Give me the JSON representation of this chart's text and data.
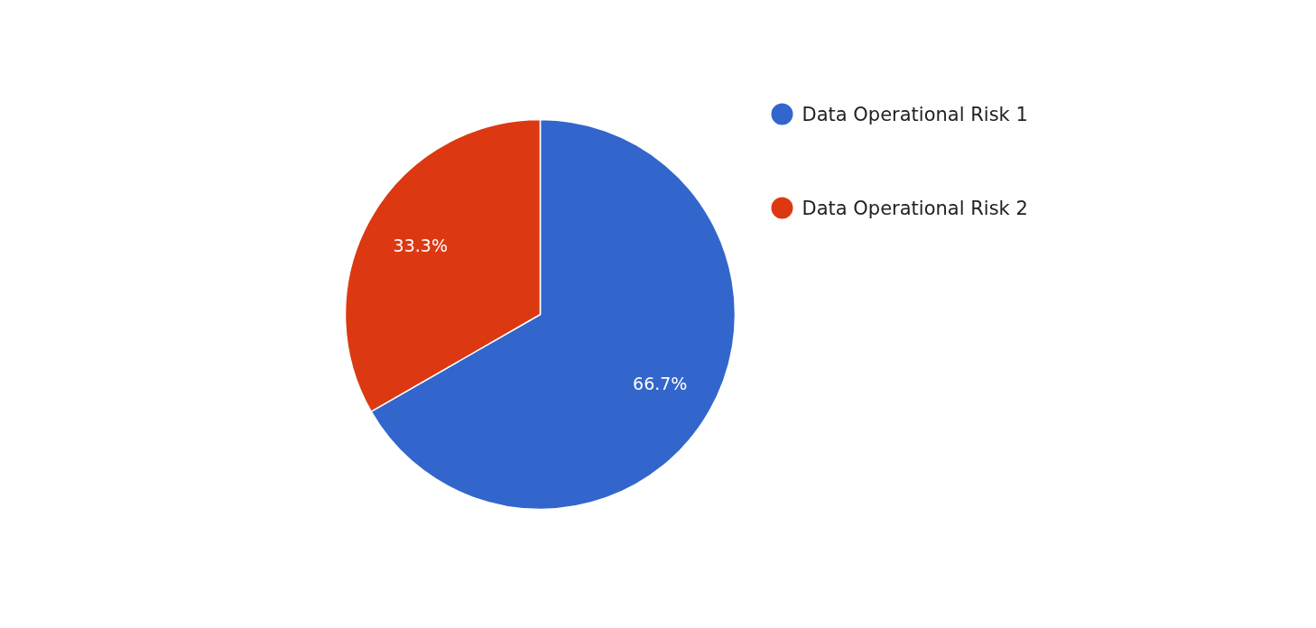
{
  "chart_data": {
    "type": "pie",
    "categories": [
      "Data Operational Risk 1",
      "Data Operational Risk 2"
    ],
    "values": [
      66.7,
      33.3
    ],
    "colors": [
      "#3366cc",
      "#dc3912"
    ],
    "value_labels": [
      "66.7%",
      "33.3%"
    ],
    "legend": "right"
  }
}
